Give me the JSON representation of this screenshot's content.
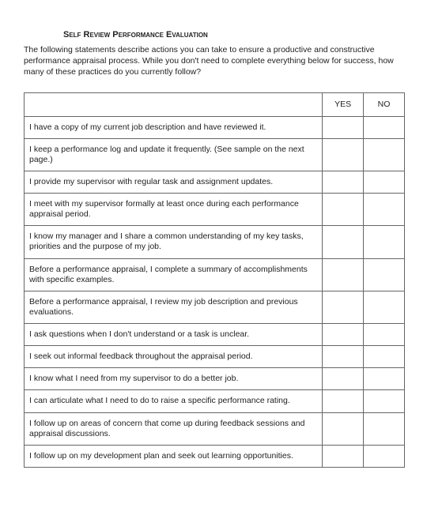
{
  "doc": {
    "title": "Self Review Performance Evaluation",
    "intro": "The following statements describe actions you can take to ensure a productive and constructive performance appraisal process. While you don't need to complete everything below for success, how many of these practices do you currently follow?"
  },
  "table": {
    "headers": {
      "statement": "",
      "yes": "YES",
      "no": "NO"
    },
    "rows": [
      {
        "text": "I have a copy of my current job description and have reviewed it."
      },
      {
        "text": "I keep a performance log and update it frequently. (See sample on the next page.)"
      },
      {
        "text": "I provide my supervisor with regular task and assignment updates."
      },
      {
        "text": "I meet with my supervisor formally at least once during each performance appraisal period."
      },
      {
        "text": "I know my manager and I share a common understanding of my key tasks, priorities and the purpose of my job."
      },
      {
        "text": "Before a performance appraisal, I complete a summary of accomplishments with specific examples."
      },
      {
        "text": "Before a performance appraisal, I review my job description and previous evaluations."
      },
      {
        "text": "I ask questions when I don't understand or a task is unclear."
      },
      {
        "text": "I seek out informal feedback throughout the appraisal period."
      },
      {
        "text": "I know what I need from my supervisor to do a better job."
      },
      {
        "text": "I can articulate what I need to do to raise a specific performance rating."
      },
      {
        "text": "I follow up on areas of concern that come up during feedback sessions and appraisal discussions."
      },
      {
        "text": "I follow up on my development plan and seek out learning opportunities."
      }
    ]
  },
  "styles": {
    "background_color": "#ffffff",
    "text_color": "#222222",
    "border_color": "#666666",
    "title_fontsize": 11,
    "body_fontsize": 10.5
  }
}
